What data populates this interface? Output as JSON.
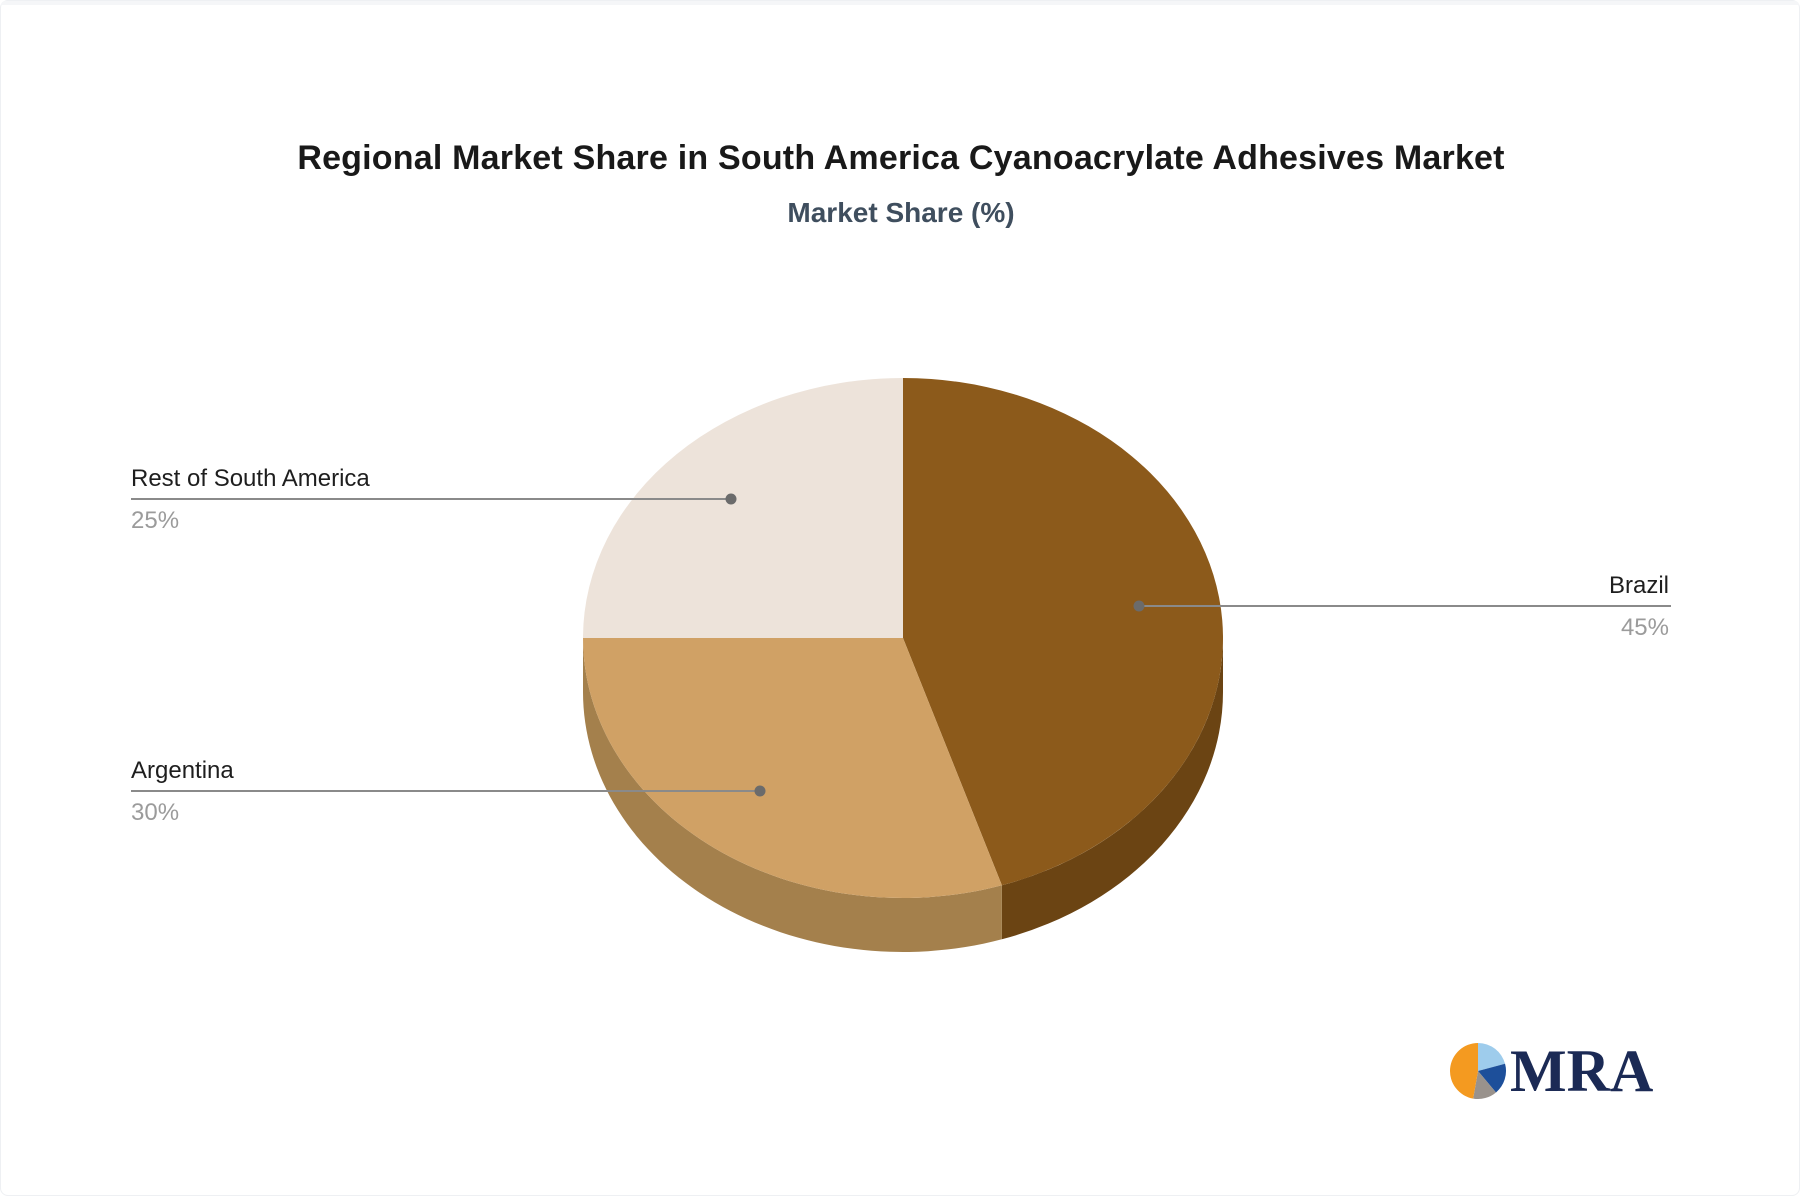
{
  "title": "Regional Market Share in South America Cyanoacrylate Adhesives Market",
  "subtitle": "Market Share (%)",
  "chart_data": {
    "type": "pie",
    "style": "3d",
    "title": "Regional Market Share in South America Cyanoacrylate Adhesives Market",
    "subtitle": "Market Share (%)",
    "unit": "%",
    "labels": [
      "Brazil",
      "Argentina",
      "Rest of South America"
    ],
    "values": [
      45,
      30,
      25
    ],
    "colors": [
      "#8C5A1B",
      "#D0A165",
      "#EDE3DA"
    ],
    "side_colors": [
      "#6B4413",
      "#A4804C",
      "#C9BFB5"
    ],
    "start_angle_deg": 0,
    "direction": "clockwise",
    "legend": "none",
    "label_style": "leader lines with name above and percent below"
  },
  "callouts": [
    {
      "name": "Brazil",
      "pct": "45%",
      "side": "right"
    },
    {
      "name": "Argentina",
      "pct": "30%",
      "side": "left"
    },
    {
      "name": "Rest of South America",
      "pct": "25%",
      "side": "left"
    }
  ],
  "theme": {
    "title_color": "#191919",
    "subtitle_color": "#3F4E5E",
    "label_color": "#1E1E1E",
    "percent_color": "#9B9B9B",
    "leader_line_color": "#8A8A8A",
    "leader_dot_color": "#6B6B6B",
    "background": "#FFFFFF"
  },
  "logo": {
    "text": "MRA",
    "text_color": "#1B2A55",
    "icon_slices": [
      {
        "name": "light-blue",
        "color": "#9ECCEC",
        "from": 0,
        "to": 75
      },
      {
        "name": "dark-blue",
        "color": "#1D4F9A",
        "from": 75,
        "to": 140
      },
      {
        "name": "gray",
        "color": "#99928C",
        "from": 140,
        "to": 190
      },
      {
        "name": "orange",
        "color": "#F49A20",
        "from": 190,
        "to": 360
      }
    ]
  }
}
